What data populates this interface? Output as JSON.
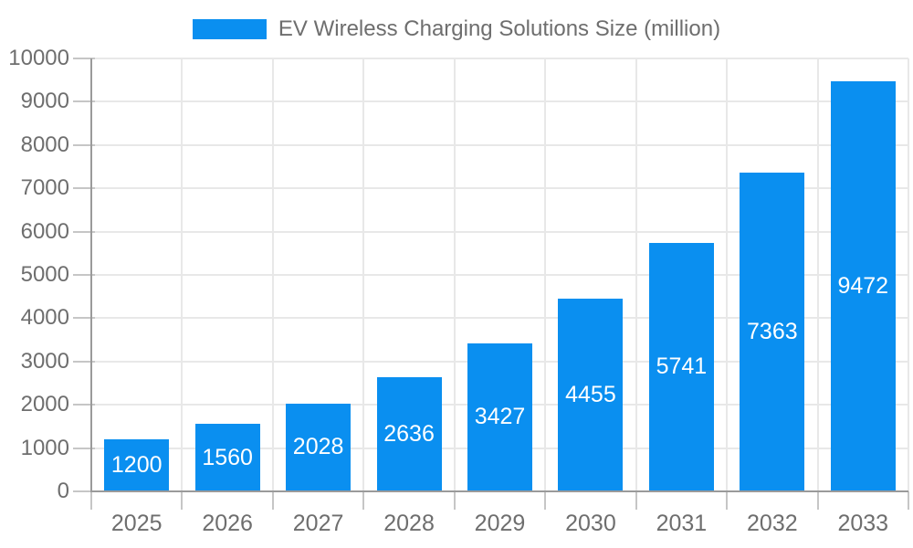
{
  "chart_data": {
    "type": "bar",
    "title": "EV Wireless Charging Solutions Size (million)",
    "legend": {
      "position": "top",
      "label": "EV Wireless Charging Solutions Size (million)"
    },
    "categories": [
      "2025",
      "2026",
      "2027",
      "2028",
      "2029",
      "2030",
      "2031",
      "2032",
      "2033"
    ],
    "series": [
      {
        "name": "EV Wireless Charging Solutions Size (million)",
        "values": [
          1200,
          1560,
          2028,
          2636,
          3427,
          4455,
          5741,
          7363,
          9472
        ]
      }
    ],
    "value_labels": "inside-center",
    "xlabel": "",
    "ylabel": "",
    "ylim": [
      0,
      10000
    ],
    "ytick_step": 1000,
    "ytick_labels": [
      "0",
      "1000",
      "2000",
      "3000",
      "4000",
      "5000",
      "6000",
      "7000",
      "8000",
      "9000",
      "10000"
    ],
    "grid": true,
    "colors": {
      "bar": "#0a8ff0",
      "bar_value_label": "#ffffff",
      "axis_line": "#9a9a9a",
      "grid_line": "#e8e8e8",
      "tick_mark": "#c6c6c6",
      "tick_label": "#6e6e6e",
      "legend_text": "#6e6e6e",
      "background": "#ffffff"
    }
  }
}
